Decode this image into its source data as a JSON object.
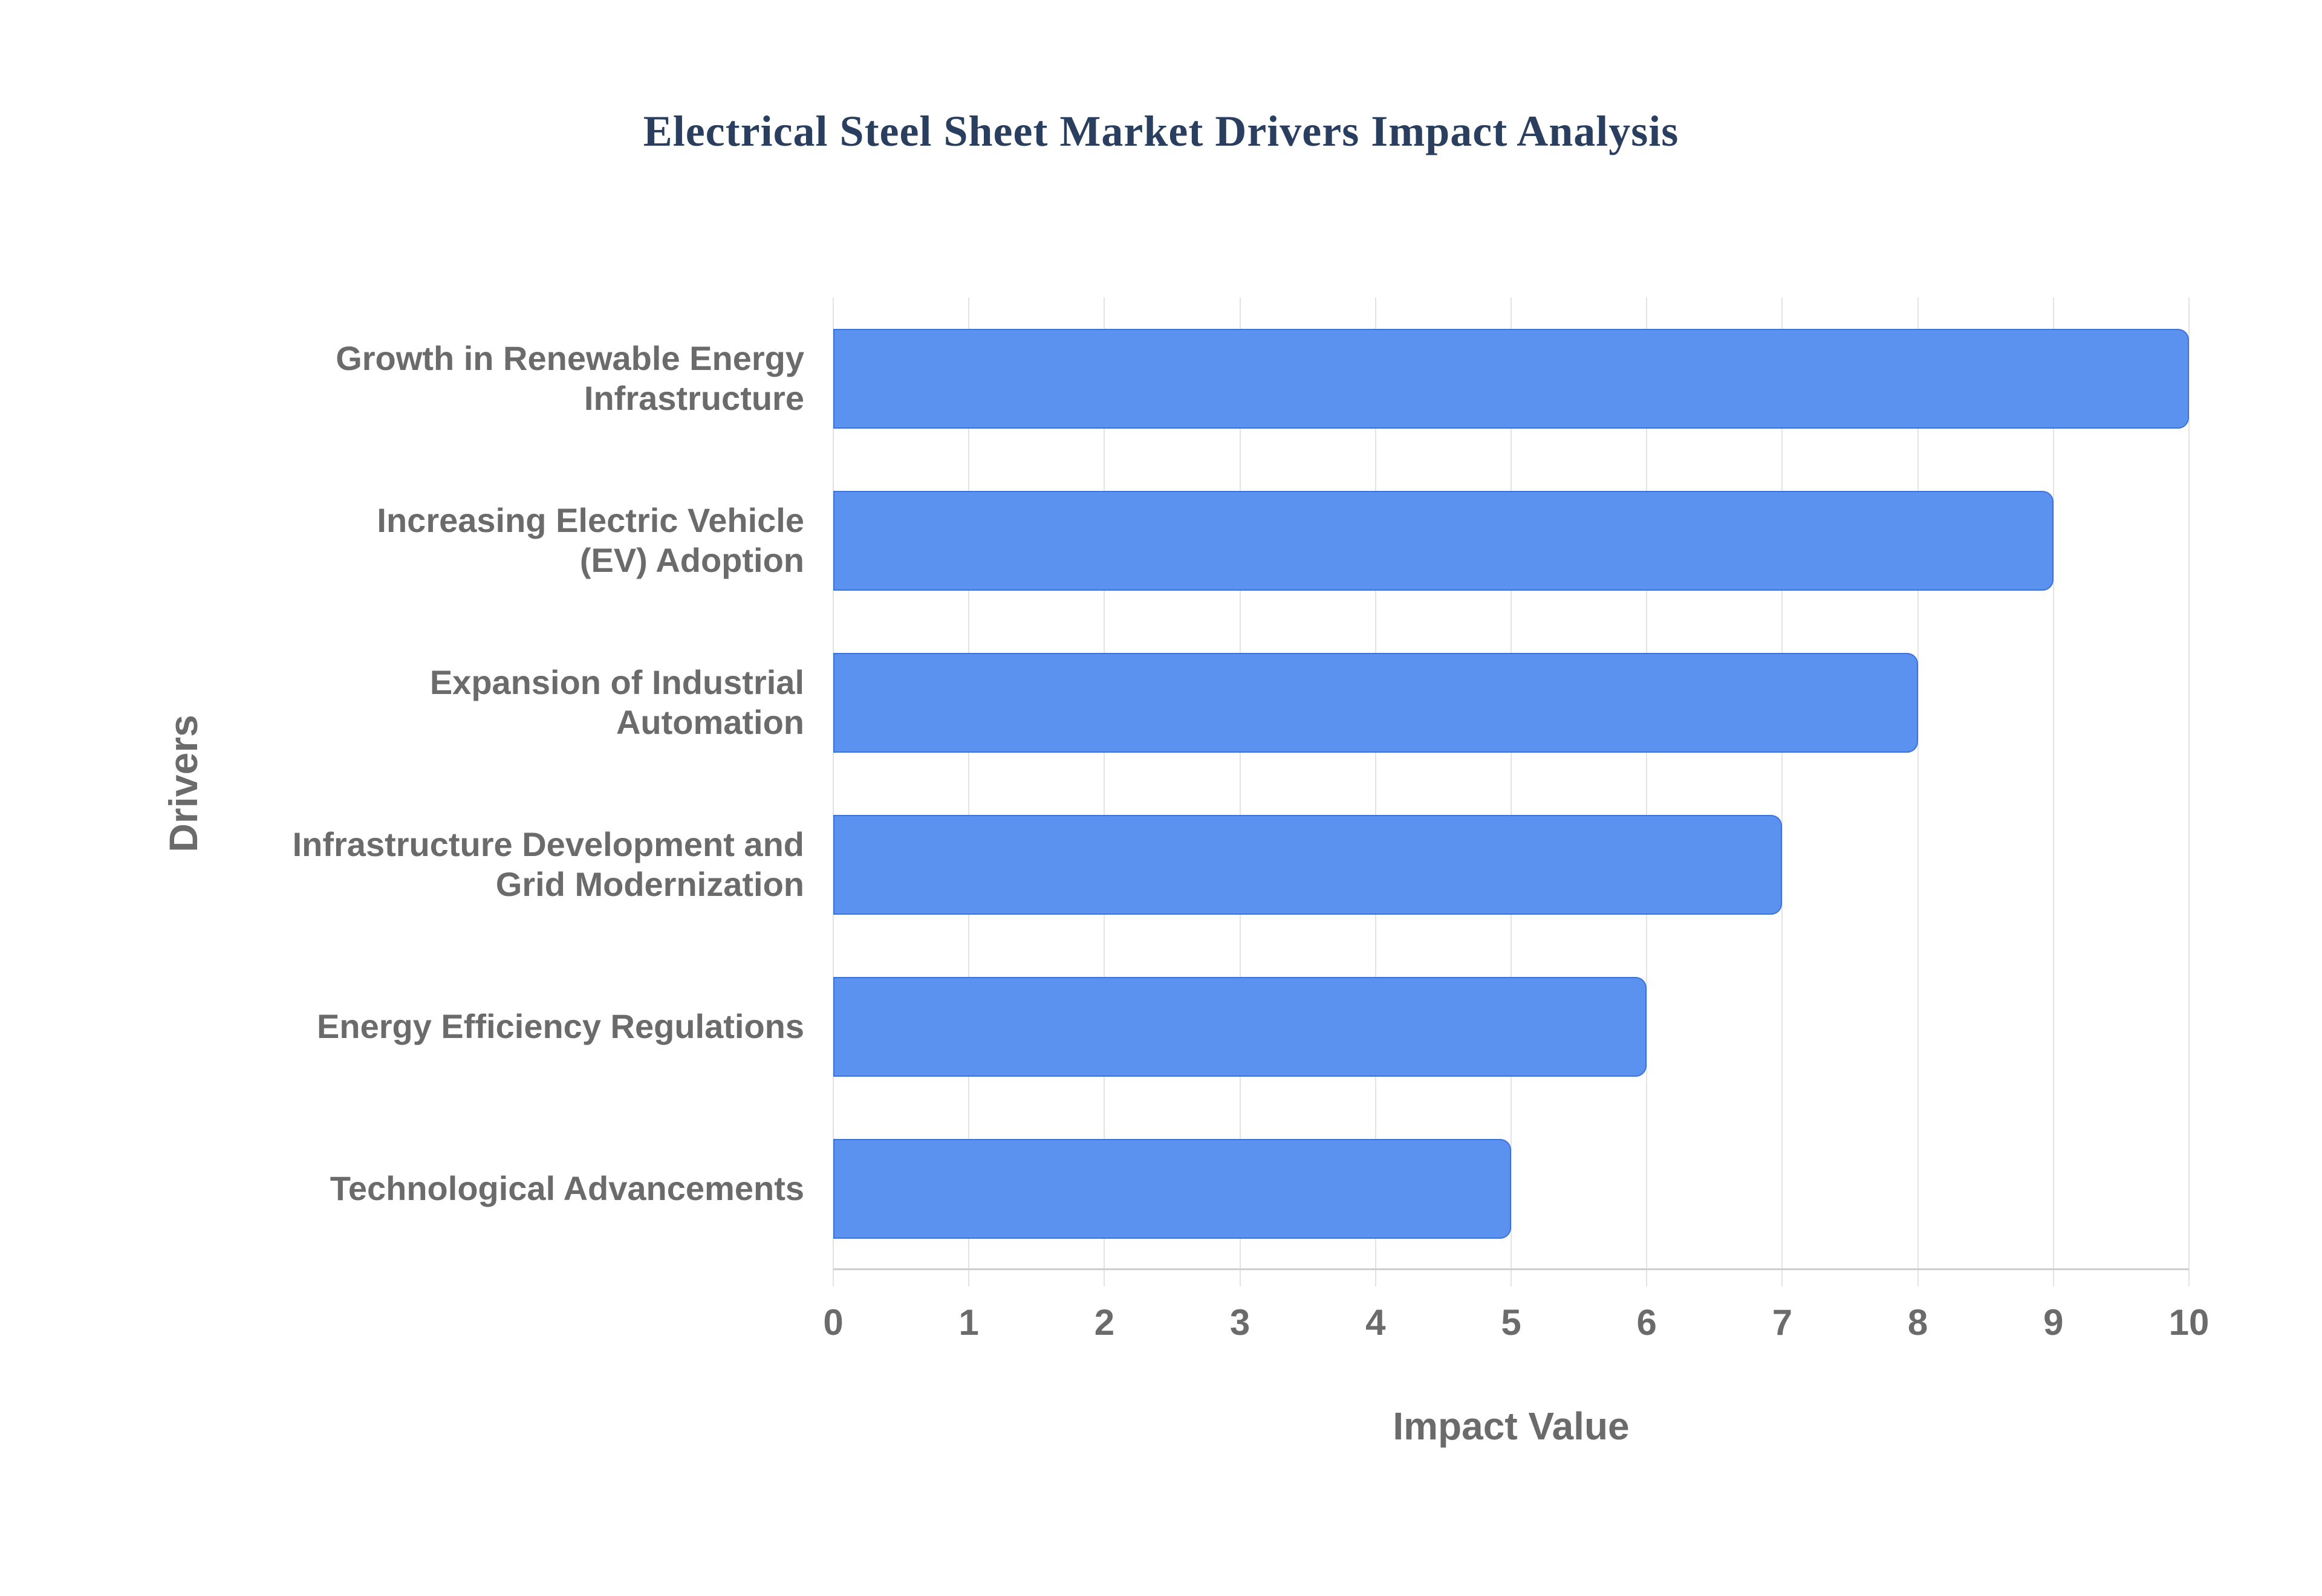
{
  "chart_data": {
    "type": "bar",
    "orientation": "horizontal",
    "title": "Electrical Steel Sheet Market Drivers Impact Analysis",
    "xlabel": "Impact Value",
    "ylabel": "Drivers",
    "categories": [
      "Growth in Renewable Energy Infrastructure",
      "Increasing Electric Vehicle (EV) Adoption",
      "Expansion of Industrial Automation",
      "Infrastructure Development and Grid Modernization",
      "Energy Efficiency Regulations",
      "Technological Advancements"
    ],
    "category_lines": [
      [
        "Growth in Renewable Energy",
        "Infrastructure"
      ],
      [
        "Increasing Electric Vehicle",
        "(EV) Adoption"
      ],
      [
        "Expansion of Industrial",
        "Automation"
      ],
      [
        "Infrastructure Development and",
        "Grid Modernization"
      ],
      [
        "Energy Efficiency Regulations"
      ],
      [
        "Technological Advancements"
      ]
    ],
    "values": [
      10,
      9,
      8,
      7,
      6,
      5
    ],
    "xlim": [
      0,
      10
    ],
    "xticks": [
      0,
      1,
      2,
      3,
      4,
      5,
      6,
      7,
      8,
      9,
      10
    ],
    "grid": true,
    "legend": "none",
    "colors": {
      "bar_fill": "#5b92f0",
      "bar_border": "#3e72da",
      "title_text": "#2a3f5f",
      "axis_text": "#6b6b6b",
      "gridline": "#e3e3e3",
      "axis_line": "#cfcfcf",
      "background": "#ffffff"
    }
  }
}
